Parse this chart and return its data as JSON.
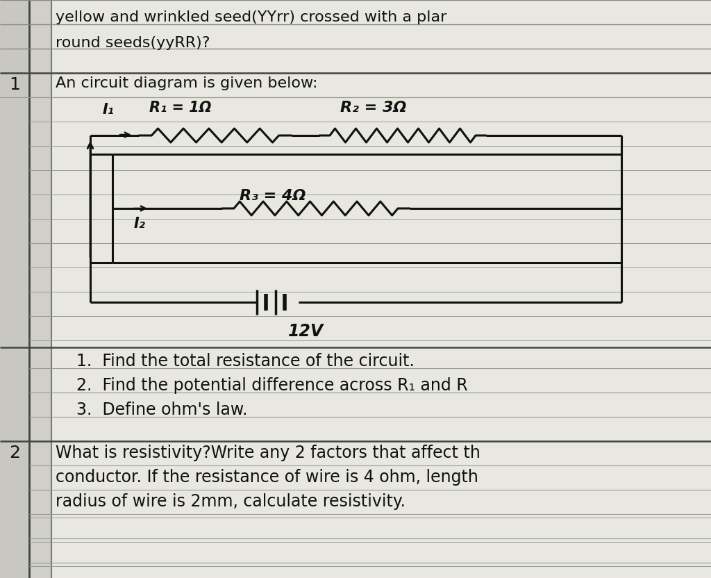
{
  "bg_color": "#d8d8d0",
  "page_bg": "#e8e8e0",
  "col_left_bg": "#c8c8c0",
  "title_top": "yellow and wrinkled seed(YYrr) crossed with a plar",
  "title_top2": "round seeds(yyRR)?",
  "row1_num": "1",
  "row1_text": "An circuit diagram is given below:",
  "circuit_label_I1": "I₁",
  "circuit_label_R1": "R₁ = 1Ω",
  "circuit_label_R2": "R₂ = 3Ω",
  "circuit_label_I2": "I₂",
  "circuit_label_R3": "R₃ = 4Ω",
  "circuit_voltage": "12V",
  "question1": "1.  Find the total resistance of the circuit.",
  "question2": "2.  Find the potential difference across R₁ and R",
  "question3": "3.  Define ohm's law.",
  "row2_num": "2",
  "row2_text": "What is resistivity?Write any 2 factors that affect th",
  "row2_text2": "conductor. If the resistance of wire is 4 ohm, length",
  "row2_text3": "radius of wire is 2mm, calculate resistivity.",
  "line_color": "#111111",
  "text_color": "#111111",
  "grid_line_color": "#999999",
  "font_size_main": 16,
  "font_size_circuit": 14,
  "font_size_questions": 17,
  "font_size_row2": 17
}
